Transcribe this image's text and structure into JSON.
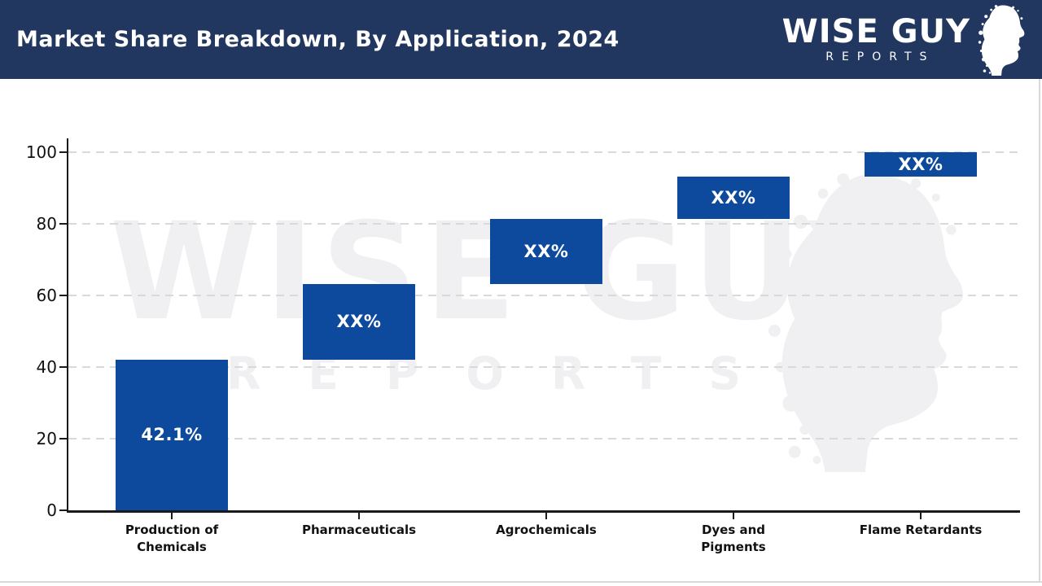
{
  "header": {
    "title": "Market Share Breakdown, By Application, 2024",
    "logo": {
      "title": "WISE GUY",
      "subtitle": "REPORTS"
    }
  },
  "watermark": {
    "title": "WISE GUY",
    "subtitle": "REPORTS"
  },
  "chart_data": {
    "type": "bar",
    "variant": "waterfall",
    "title": "Market Share Breakdown, By Application, 2024",
    "categories": [
      "Production of Chemicals",
      "Pharmaceuticals",
      "Agrochemicals",
      "Dyes and Pigments",
      "Flame Retardants"
    ],
    "segments": [
      {
        "category": "Production of Chemicals",
        "start": 0,
        "end": 42.1,
        "label": "42.1%"
      },
      {
        "category": "Pharmaceuticals",
        "start": 42.1,
        "end": 63.2,
        "label": "XX%"
      },
      {
        "category": "Agrochemicals",
        "start": 63.2,
        "end": 81.4,
        "label": "XX%"
      },
      {
        "category": "Dyes and Pigments",
        "start": 81.4,
        "end": 93.2,
        "label": "XX%"
      },
      {
        "category": "Flame Retardants",
        "start": 93.2,
        "end": 100,
        "label": "XX%"
      }
    ],
    "yticks": [
      0,
      20,
      40,
      60,
      80,
      100
    ],
    "ylim": [
      0,
      104
    ],
    "xlabel": "",
    "ylabel": "",
    "legend": "none",
    "grid": "horizontal-dashed"
  },
  "colors": {
    "header_bg": "#21375f",
    "bar": "#0d4a9e",
    "bar_label": "#ffffff",
    "grid": "#d9d9d9",
    "axis": "#1a1a1a",
    "watermark": "#f0f0f2"
  }
}
